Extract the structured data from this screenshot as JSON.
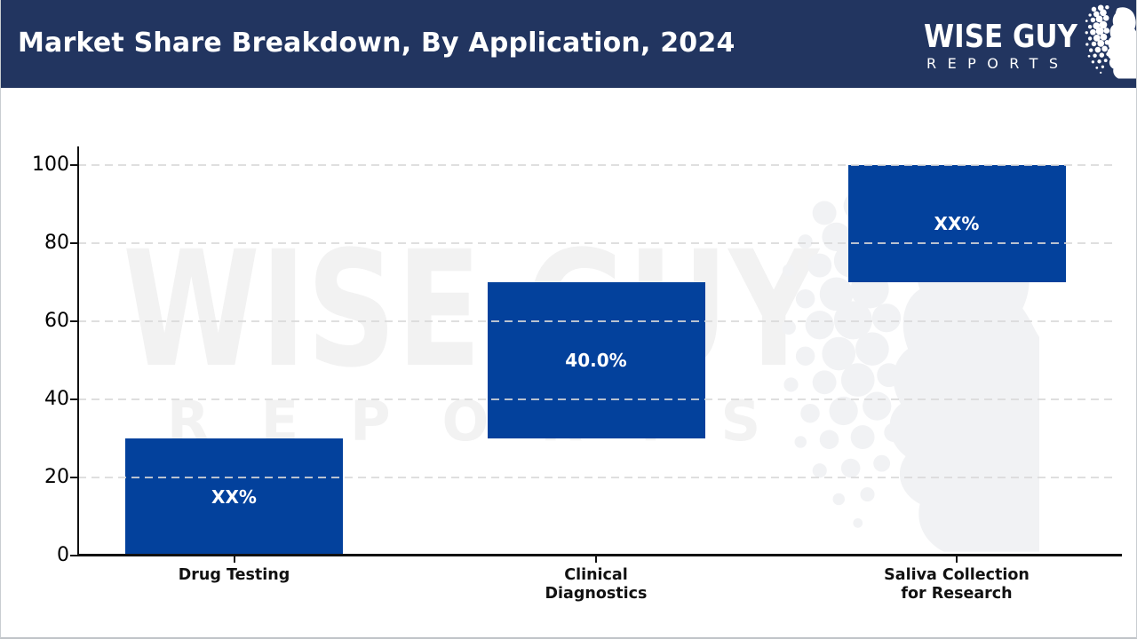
{
  "header": {
    "logo": {
      "line1": "WISE GUY",
      "line2": "REPORTS"
    }
  },
  "watermark": {
    "line1": "WISE GUY",
    "line2": "REPORTS"
  },
  "colors": {
    "header_bg": "#223560",
    "bar": "#03419c",
    "grid": "#d9d9d9",
    "watermark": "#f2f2f2",
    "axis": "#111111",
    "title_text": "#ffffff",
    "bar_label_text": "#ffffff"
  },
  "chart_data": {
    "type": "bar",
    "subtype": "floating-range-bars",
    "title": "Market Share Breakdown, By Application, 2024",
    "categories": [
      {
        "name": "Drug Testing",
        "lines": [
          "Drug Testing"
        ]
      },
      {
        "name": "Clinical Diagnostics",
        "lines": [
          "Clinical",
          "Diagnostics"
        ]
      },
      {
        "name": "Saliva Collection for Research",
        "lines": [
          "Saliva Collection",
          "for Research"
        ]
      }
    ],
    "segments": [
      {
        "category": "Drug Testing",
        "from": 0,
        "to": 30,
        "label": "XX%"
      },
      {
        "category": "Clinical Diagnostics",
        "from": 30,
        "to": 70,
        "label": "40.0%"
      },
      {
        "category": "Saliva Collection for Research",
        "from": 70,
        "to": 100,
        "label": "XX%"
      }
    ],
    "ylim": [
      0,
      100
    ],
    "yticks": [
      0,
      20,
      40,
      60,
      80,
      100
    ],
    "grid": "dashed-horizontal",
    "legend": "none",
    "bar_color": "#03419c",
    "bar_label_color": "#ffffff"
  }
}
